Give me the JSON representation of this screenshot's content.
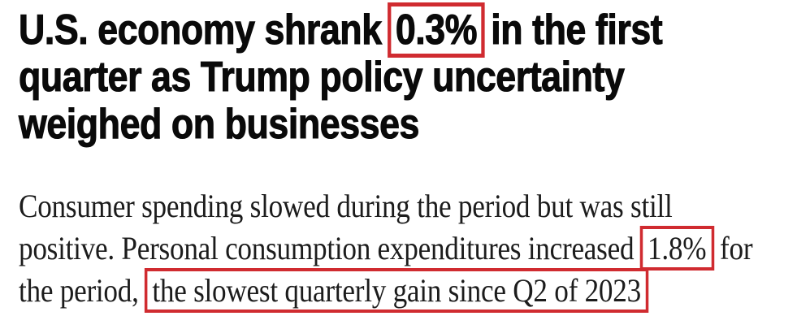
{
  "colors": {
    "highlight_red": "#d02b30",
    "headline_text": "#0a0a0a",
    "body_text": "#1c1c1c",
    "background": "#ffffff"
  },
  "article": {
    "headline": {
      "lines": [
        {
          "pre": "U.S. economy shrank",
          "boxed": "0.3%",
          "post": "in the first"
        },
        {
          "text": "quarter as Trump policy uncertainty"
        },
        {
          "text": "weighed on businesses"
        }
      ]
    },
    "body": {
      "lines": [
        {
          "text": "Consumer spending slowed during the period but was still"
        },
        {
          "pre": "positive. Personal consumption expenditures increased",
          "boxed": "1.8%",
          "post": "for"
        },
        {
          "pre": "the period,",
          "boxed": "the slowest quarterly gain since Q2 of 2023"
        }
      ]
    }
  }
}
